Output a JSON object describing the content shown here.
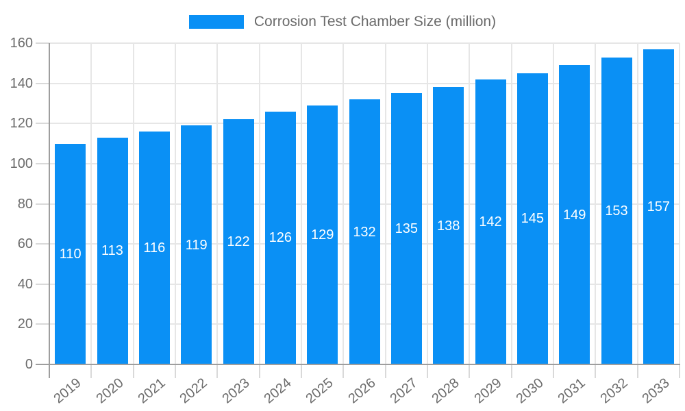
{
  "chart_data": {
    "type": "bar",
    "title": "Corrosion Test Chamber Size (million)",
    "categories": [
      "2019",
      "2020",
      "2021",
      "2022",
      "2023",
      "2024",
      "2025",
      "2026",
      "2027",
      "2028",
      "2029",
      "2030",
      "2031",
      "2032",
      "2033"
    ],
    "values": [
      110,
      113,
      116,
      119,
      122,
      126,
      129,
      132,
      135,
      138,
      142,
      145,
      149,
      153,
      157
    ],
    "series_name": "Corrosion Test Chamber Size (million)",
    "xlabel": "",
    "ylabel": "",
    "ylim": [
      0,
      160
    ],
    "yticks": [
      0,
      20,
      40,
      60,
      80,
      100,
      120,
      140,
      160
    ],
    "grid": true,
    "legend_position": "top-center",
    "value_label_position": "inside-middle",
    "x_tick_rotation_deg": -40
  },
  "legend": {
    "label": "Corrosion Test Chamber Size (million)"
  },
  "colors": {
    "bar_fill": "#0a90f5",
    "grid_line": "#e6e6e6",
    "axis_line": "#9e9e9e",
    "tick_line": "#d9d9d9",
    "tick_text": "#6b6b6b",
    "value_label_text": "#ffffff",
    "background": "#ffffff"
  }
}
